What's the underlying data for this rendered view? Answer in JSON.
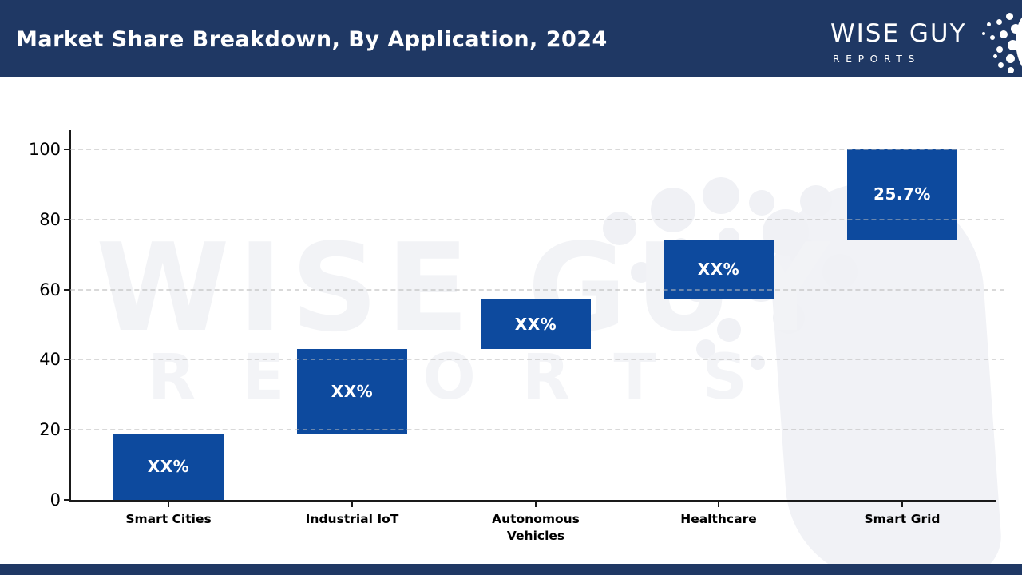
{
  "header": {
    "title": "Market Share Breakdown, By Application, 2024",
    "brand_line1": "WISE GUY",
    "brand_line2": "REPORTS",
    "bg_color": "#1f3864"
  },
  "watermark": {
    "line1": "WISE GUY",
    "line2": "REPORTS"
  },
  "chart_data": {
    "type": "bar",
    "subtype": "waterfall",
    "title": "Market Share Breakdown, By Application, 2024",
    "categories": [
      "Smart Cities",
      "Industrial IoT",
      "Autonomous Vehicles",
      "Healthcare",
      "Smart Grid"
    ],
    "series": [
      {
        "name": "Market Share (%)",
        "starts": [
          0,
          19,
          43,
          57.4,
          74.3
        ],
        "ends": [
          19,
          43,
          57.2,
          74.3,
          100
        ],
        "labels": [
          "XX%",
          "XX%",
          "XX%",
          "XX%",
          "25.7%"
        ]
      }
    ],
    "xlabel": "",
    "ylabel": "",
    "ylim": [
      0,
      100
    ],
    "yticks": [
      0,
      20,
      40,
      60,
      80,
      100
    ],
    "grid": true,
    "grid_style": "dashed",
    "legend": false,
    "bar_color": "#0d4a9e",
    "bar_label_color": "#ffffff",
    "axis_color": "#1a1a1a"
  },
  "footer": {
    "bg_color": "#1f3864"
  }
}
